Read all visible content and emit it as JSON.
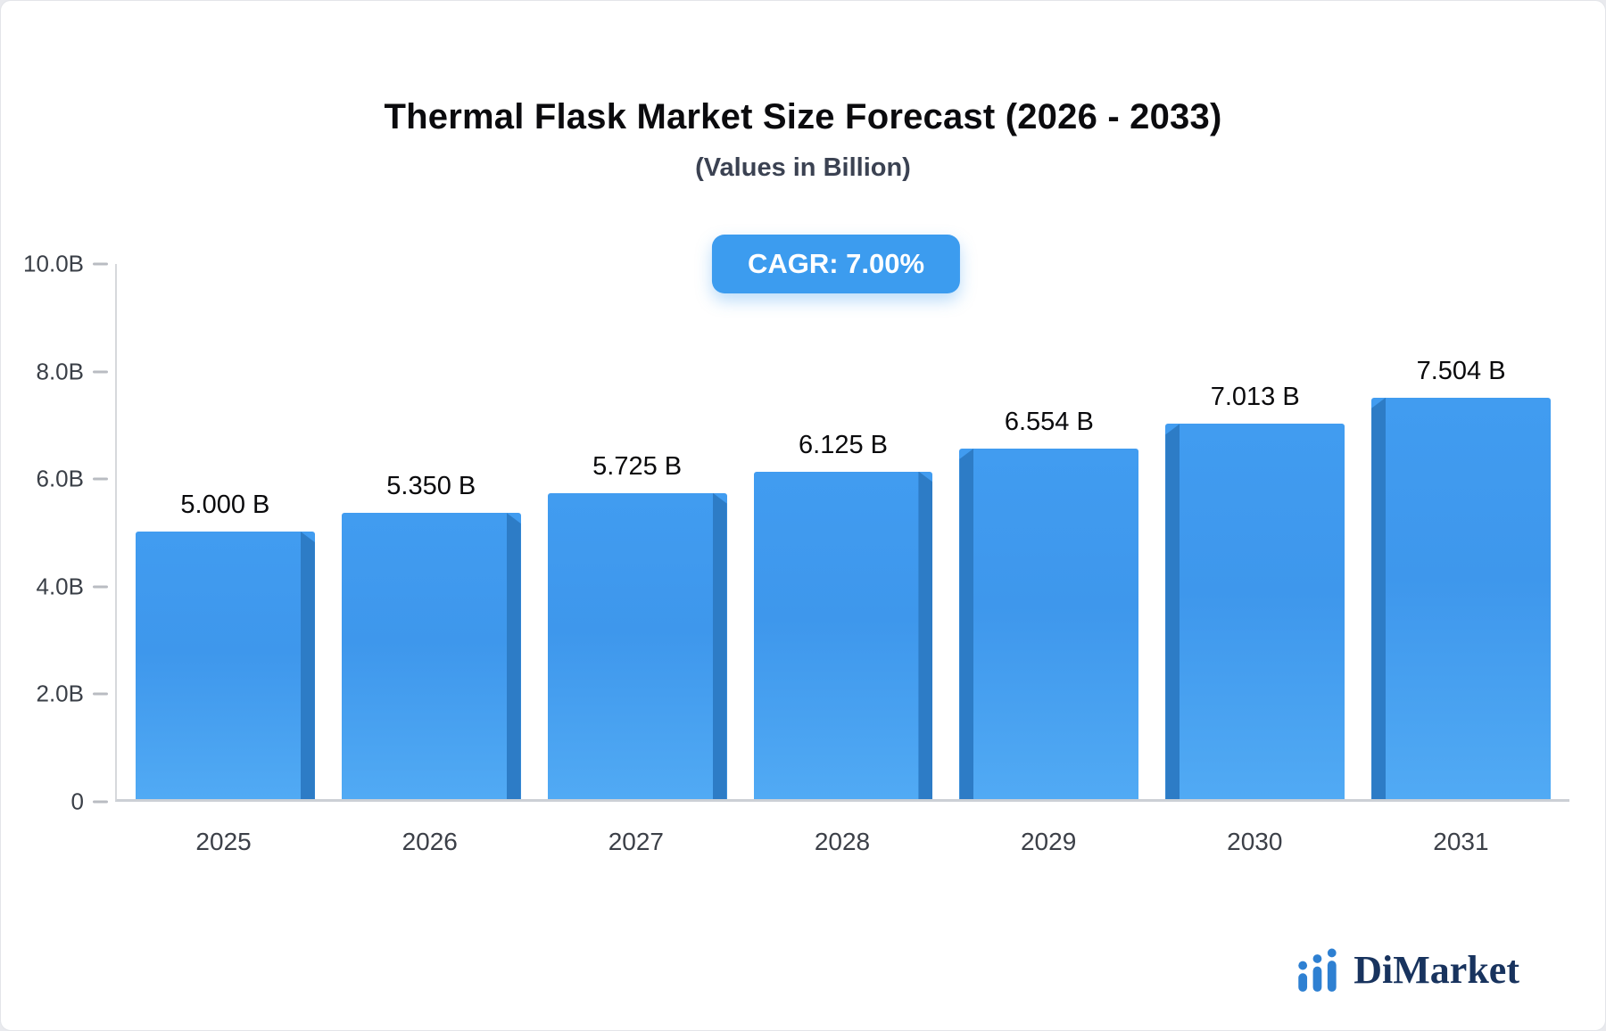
{
  "header": {
    "title": "Thermal Flask Market Size Forecast (2026 - 2033)",
    "subtitle": "(Values in Billion)",
    "cagr_badge": "CAGR: 7.00%"
  },
  "chart_data": {
    "type": "bar",
    "title": "Thermal Flask Market Size Forecast (2026 - 2033)",
    "subtitle": "(Values in Billion)",
    "categories": [
      "2025",
      "2026",
      "2027",
      "2028",
      "2029",
      "2030",
      "2031"
    ],
    "values": [
      5.0,
      5.35,
      5.725,
      6.125,
      6.554,
      7.013,
      7.504
    ],
    "value_labels": [
      "5.000 B",
      "5.350 B",
      "5.725 B",
      "6.125 B",
      "6.554 B",
      "7.013 B",
      "7.504 B"
    ],
    "xlabel": "",
    "ylabel": "",
    "ylim": [
      0,
      10
    ],
    "y_ticks": [
      "10.0B",
      "8.0B",
      "6.0B",
      "4.0B",
      "2.0B",
      "0"
    ],
    "grid": false,
    "legend": false,
    "annotations": [
      "CAGR: 7.00%"
    ],
    "bar_color": "#3f9bef",
    "bar_side_color": "#2d7cc6",
    "badge_color": "#3c9cef"
  },
  "footer": {
    "brand": "DiMarket",
    "brand_color": "#18335e",
    "icon_color": "#2e80d2"
  }
}
